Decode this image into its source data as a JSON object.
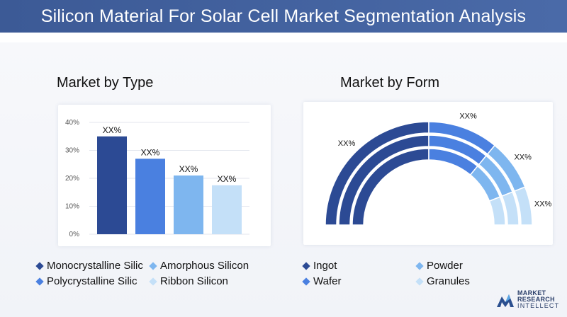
{
  "header": {
    "title": "Silicon Material For Solar Cell Market Segmentation Analysis"
  },
  "left": {
    "title": "Market by Type"
  },
  "right": {
    "title": "Market by Form"
  },
  "chart_data": [
    {
      "type": "bar",
      "title": "Market by Type",
      "categories": [
        "Monocrystalline Silic",
        "Polycrystalline Silic",
        "Amorphous Silicon",
        "Ribbon Silicon"
      ],
      "values": [
        35,
        27,
        21,
        17.5
      ],
      "data_labels": [
        "XX%",
        "XX%",
        "XX%",
        "XX%"
      ],
      "colors": [
        "#2c4a94",
        "#4a80e0",
        "#7eb6ef",
        "#c4e0f8"
      ],
      "yticks": [
        "0%",
        "10%",
        "20%",
        "30%",
        "40%"
      ],
      "ylim": [
        0,
        40
      ],
      "grid": true
    },
    {
      "type": "pie",
      "subtype": "semi-donut",
      "title": "Market by Form",
      "categories": [
        "Ingot",
        "Wafer",
        "Powder",
        "Granules"
      ],
      "values": [
        50,
        22,
        16,
        12
      ],
      "data_labels": [
        "XX%",
        "XX%",
        "XX%",
        "XX%"
      ],
      "colors": [
        "#2c4a94",
        "#4a80e0",
        "#7eb6ef",
        "#c4e0f8"
      ],
      "rings": 3
    }
  ],
  "legend_left": [
    {
      "label": "Monocrystalline Silic",
      "color": "#2c4a94"
    },
    {
      "label": "Polycrystalline Silic",
      "color": "#4a80e0"
    },
    {
      "label": "Amorphous Silicon",
      "color": "#7eb6ef"
    },
    {
      "label": "Ribbon Silicon",
      "color": "#c4e0f8"
    }
  ],
  "legend_right": [
    {
      "label": "Ingot",
      "color": "#2c4a94"
    },
    {
      "label": "Wafer",
      "color": "#4a80e0"
    },
    {
      "label": "Powder",
      "color": "#7eb6ef"
    },
    {
      "label": "Granules",
      "color": "#c4e0f8"
    }
  ],
  "logo": {
    "line1": "MARKET",
    "line2": "RESEARCH",
    "line3": "INTELLECT"
  }
}
